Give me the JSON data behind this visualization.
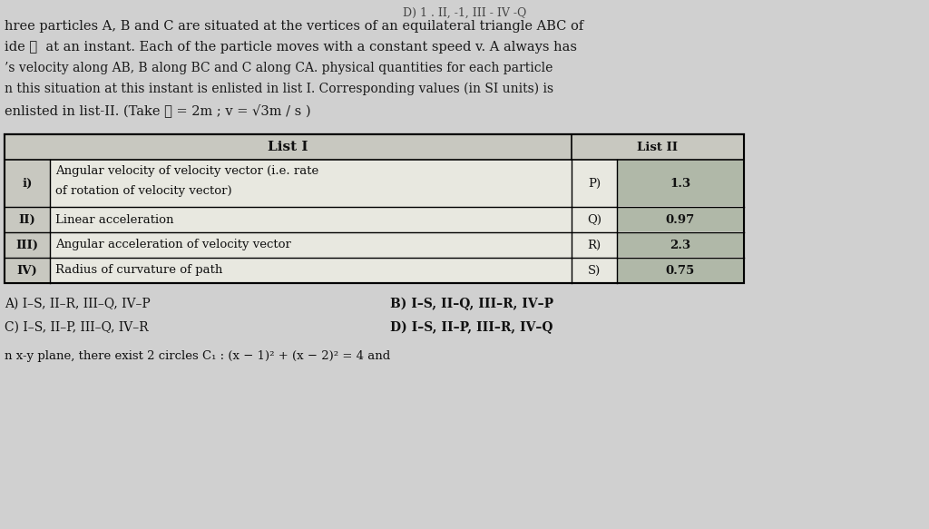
{
  "background_color": "#b8b8b8",
  "page_bg": "#d0d0d0",
  "top_text": "D) 1 . II, -1, III - IV -Q",
  "para_lines": [
    "hree particles A, B and C are situated at the vertices of an equilateral triangle ABC of",
    "ide ℓ  at an instant. Each of the particle moves with a constant speed v. A always has",
    "’s velocity along AB, B along BC and C along CA. physical quantities for each particle",
    "n this situation at this instant is enlisted in list I. Corresponding values (in SI units) is",
    "enlisted in list-II. (Take ℓ = 2m ; v = √3m / s )"
  ],
  "col_header_listI": "List I",
  "col_header_listII": "List II",
  "rows": [
    {
      "num": "i)",
      "desc_line1": "Angular velocity of velocity vector (i.e. rate",
      "desc_line2": "of rotation of velocity vector)",
      "letter": "P)",
      "value": "1.3"
    },
    {
      "num": "II)",
      "desc_line1": "Linear acceleration",
      "desc_line2": "",
      "letter": "Q)",
      "value": "0.97"
    },
    {
      "num": "III)",
      "desc_line1": "Angular acceleration of velocity vector",
      "desc_line2": "",
      "letter": "R)",
      "value": "2.3"
    },
    {
      "num": "IV)",
      "desc_line1": "Radius of curvature of path",
      "desc_line2": "",
      "letter": "S)",
      "value": "0.75"
    }
  ],
  "options_row1_A": "A) I–S, II–R, III–Q, IV–P",
  "options_row1_B": "B) I–S, II–Q, III–R, IV–P",
  "options_row2_C": "C) I–S, II–P, III–Q, IV–R",
  "options_row2_D": "D) I–S, II–P, III–R, IV–Q",
  "bottom_line": "n x-y plane, there exist 2 circles C₁ : (x − 1)² + (x − 2)² = 4 and",
  "table_bg": "#e8e8e0",
  "value_bg_color": "#b0b8a8",
  "header_bg": "#c8c8c0",
  "row_num_bg": "#c8c8c0"
}
